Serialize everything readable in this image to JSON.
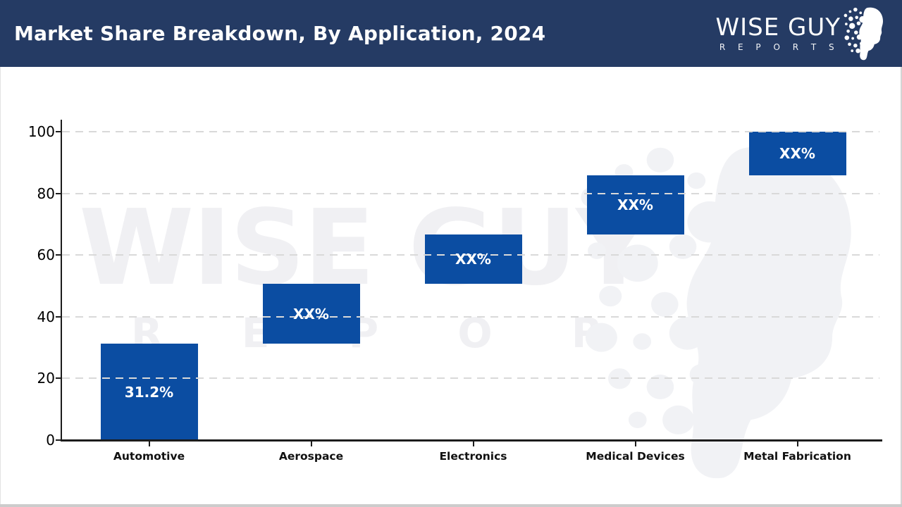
{
  "header": {
    "title": "Market Share Breakdown, By Application, 2024",
    "logo": {
      "wordmark": "WISE GUY",
      "subtext": "R E P O R T S"
    }
  },
  "watermark": {
    "wordmark": "WISE GUY",
    "subtext": "R E P O R T S"
  },
  "colors": {
    "header_bg": "#253b64",
    "bar_fill": "#0b4da2",
    "bar_label_text": "#ffffff",
    "axis": "#1c1c1c",
    "tick_label": "#000000",
    "grid": "#d9d9d9",
    "watermark_text": "#f0f0f3"
  },
  "chart_data": {
    "type": "bar",
    "subtype": "waterfall",
    "title": "Market Share Breakdown, By Application, 2024",
    "categories": [
      "Automotive",
      "Aerospace",
      "Electronics",
      "Medical Devices",
      "Metal Fabrication"
    ],
    "segments": [
      {
        "category": "Automotive",
        "start": 0,
        "end": 31.2,
        "label": "31.2%"
      },
      {
        "category": "Aerospace",
        "start": 31.2,
        "end": 50.7,
        "label": "XX%"
      },
      {
        "category": "Electronics",
        "start": 50.7,
        "end": 66.7,
        "label": "XX%"
      },
      {
        "category": "Medical Devices",
        "start": 66.7,
        "end": 85.8,
        "label": "XX%"
      },
      {
        "category": "Metal Fabrication",
        "start": 85.8,
        "end": 100,
        "label": "XX%"
      }
    ],
    "ylim": [
      0,
      100
    ],
    "yticks": [
      0,
      20,
      40,
      60,
      80,
      100
    ],
    "xlabel": "",
    "ylabel": "",
    "grid": "horizontal-dashed",
    "legend": "none"
  }
}
